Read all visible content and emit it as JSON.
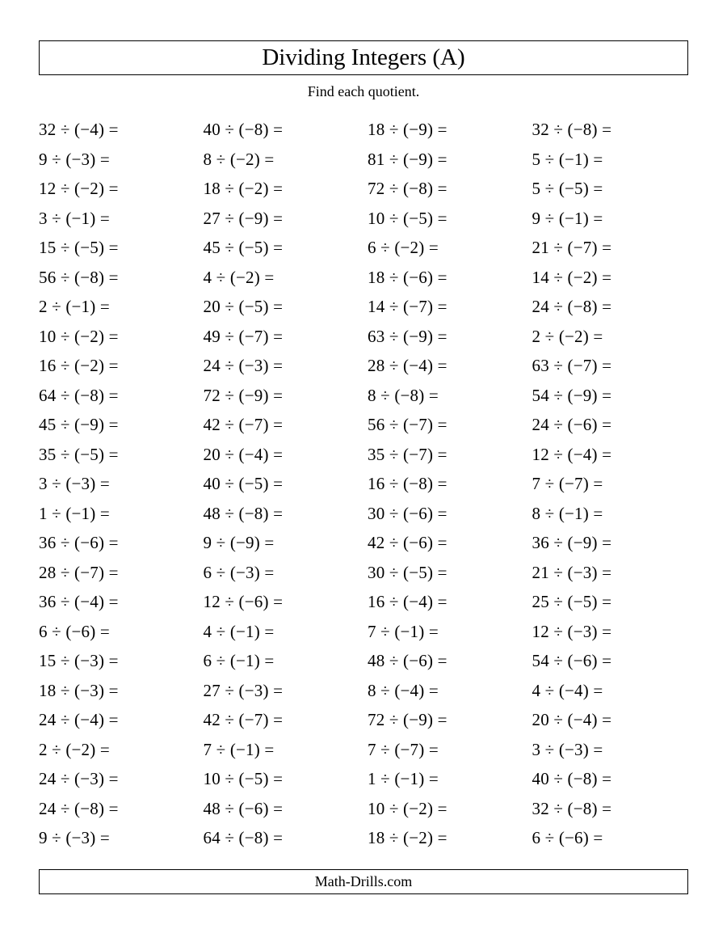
{
  "title": "Dividing Integers (A)",
  "instruction": "Find each quotient.",
  "footer": "Math-Drills.com",
  "columns": [
    [
      {
        "a": 32,
        "b": -4
      },
      {
        "a": 9,
        "b": -3
      },
      {
        "a": 12,
        "b": -2
      },
      {
        "a": 3,
        "b": -1
      },
      {
        "a": 15,
        "b": -5
      },
      {
        "a": 56,
        "b": -8
      },
      {
        "a": 2,
        "b": -1
      },
      {
        "a": 10,
        "b": -2
      },
      {
        "a": 16,
        "b": -2
      },
      {
        "a": 64,
        "b": -8
      },
      {
        "a": 45,
        "b": -9
      },
      {
        "a": 35,
        "b": -5
      },
      {
        "a": 3,
        "b": -3
      },
      {
        "a": 1,
        "b": -1
      },
      {
        "a": 36,
        "b": -6
      },
      {
        "a": 28,
        "b": -7
      },
      {
        "a": 36,
        "b": -4
      },
      {
        "a": 6,
        "b": -6
      },
      {
        "a": 15,
        "b": -3
      },
      {
        "a": 18,
        "b": -3
      },
      {
        "a": 24,
        "b": -4
      },
      {
        "a": 2,
        "b": -2
      },
      {
        "a": 24,
        "b": -3
      },
      {
        "a": 24,
        "b": -8
      },
      {
        "a": 9,
        "b": -3
      }
    ],
    [
      {
        "a": 40,
        "b": -8
      },
      {
        "a": 8,
        "b": -2
      },
      {
        "a": 18,
        "b": -2
      },
      {
        "a": 27,
        "b": -9
      },
      {
        "a": 45,
        "b": -5
      },
      {
        "a": 4,
        "b": -2
      },
      {
        "a": 20,
        "b": -5
      },
      {
        "a": 49,
        "b": -7
      },
      {
        "a": 24,
        "b": -3
      },
      {
        "a": 72,
        "b": -9
      },
      {
        "a": 42,
        "b": -7
      },
      {
        "a": 20,
        "b": -4
      },
      {
        "a": 40,
        "b": -5
      },
      {
        "a": 48,
        "b": -8
      },
      {
        "a": 9,
        "b": -9
      },
      {
        "a": 6,
        "b": -3
      },
      {
        "a": 12,
        "b": -6
      },
      {
        "a": 4,
        "b": -1
      },
      {
        "a": 6,
        "b": -1
      },
      {
        "a": 27,
        "b": -3
      },
      {
        "a": 42,
        "b": -7
      },
      {
        "a": 7,
        "b": -1
      },
      {
        "a": 10,
        "b": -5
      },
      {
        "a": 48,
        "b": -6
      },
      {
        "a": 64,
        "b": -8
      }
    ],
    [
      {
        "a": 18,
        "b": -9
      },
      {
        "a": 81,
        "b": -9
      },
      {
        "a": 72,
        "b": -8
      },
      {
        "a": 10,
        "b": -5
      },
      {
        "a": 6,
        "b": -2
      },
      {
        "a": 18,
        "b": -6
      },
      {
        "a": 14,
        "b": -7
      },
      {
        "a": 63,
        "b": -9
      },
      {
        "a": 28,
        "b": -4
      },
      {
        "a": 8,
        "b": -8
      },
      {
        "a": 56,
        "b": -7
      },
      {
        "a": 35,
        "b": -7
      },
      {
        "a": 16,
        "b": -8
      },
      {
        "a": 30,
        "b": -6
      },
      {
        "a": 42,
        "b": -6
      },
      {
        "a": 30,
        "b": -5
      },
      {
        "a": 16,
        "b": -4
      },
      {
        "a": 7,
        "b": -1
      },
      {
        "a": 48,
        "b": -6
      },
      {
        "a": 8,
        "b": -4
      },
      {
        "a": 72,
        "b": -9
      },
      {
        "a": 7,
        "b": -7
      },
      {
        "a": 1,
        "b": -1
      },
      {
        "a": 10,
        "b": -2
      },
      {
        "a": 18,
        "b": -2
      }
    ],
    [
      {
        "a": 32,
        "b": -8
      },
      {
        "a": 5,
        "b": -1
      },
      {
        "a": 5,
        "b": -5
      },
      {
        "a": 9,
        "b": -1
      },
      {
        "a": 21,
        "b": -7
      },
      {
        "a": 14,
        "b": -2
      },
      {
        "a": 24,
        "b": -8
      },
      {
        "a": 2,
        "b": -2
      },
      {
        "a": 63,
        "b": -7
      },
      {
        "a": 54,
        "b": -9
      },
      {
        "a": 24,
        "b": -6
      },
      {
        "a": 12,
        "b": -4
      },
      {
        "a": 7,
        "b": -7
      },
      {
        "a": 8,
        "b": -1
      },
      {
        "a": 36,
        "b": -9
      },
      {
        "a": 21,
        "b": -3
      },
      {
        "a": 25,
        "b": -5
      },
      {
        "a": 12,
        "b": -3
      },
      {
        "a": 54,
        "b": -6
      },
      {
        "a": 4,
        "b": -4
      },
      {
        "a": 20,
        "b": -4
      },
      {
        "a": 3,
        "b": -3
      },
      {
        "a": 40,
        "b": -8
      },
      {
        "a": 32,
        "b": -8
      },
      {
        "a": 6,
        "b": -6
      }
    ]
  ]
}
